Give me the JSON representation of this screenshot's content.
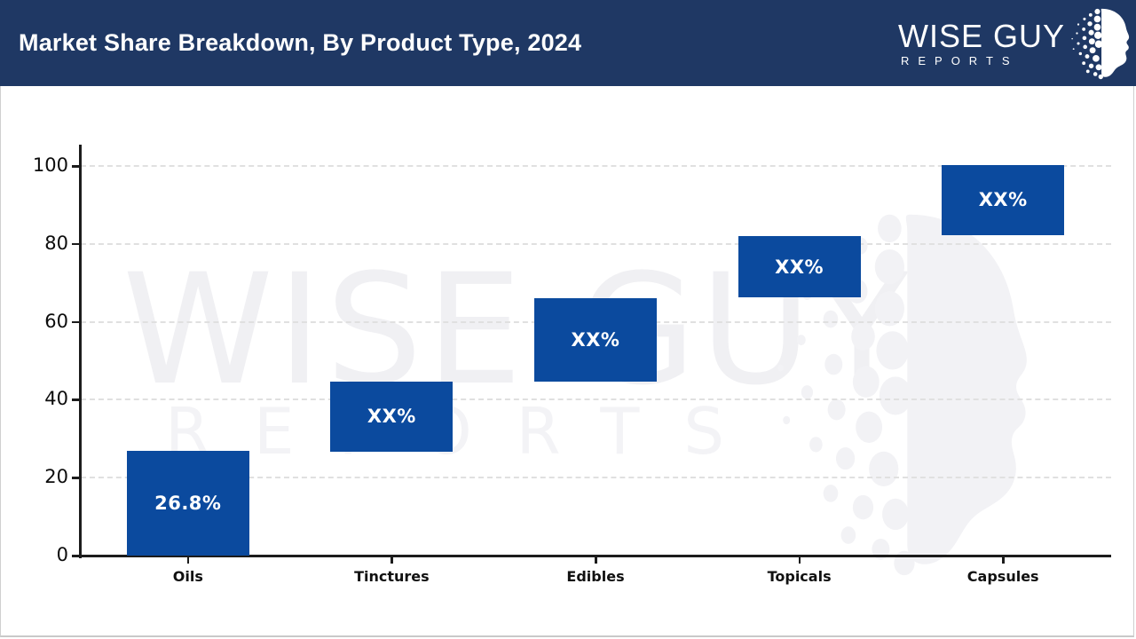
{
  "header": {
    "title": "Market Share Breakdown, By Product Type, 2024",
    "logo": {
      "name": "WISE GUY",
      "subtitle": "REPORTS",
      "icon": "dotted-head-icon"
    }
  },
  "watermark": {
    "name": "WISE GUY",
    "subtitle": "REPORTS",
    "icon": "dotted-head-icon"
  },
  "colors": {
    "header_bg": "#1f3864",
    "bar": "#0b4a9e",
    "bar_label_text": "#ffffff",
    "grid": "#e0e0e0",
    "axis": "#1c1c1c",
    "tick_text": "#0c0c0c",
    "title_text": "#ffffff",
    "watermark": "#f0f0f3"
  },
  "chart_data": {
    "type": "bar",
    "subtype": "floating-waterfall",
    "title": "Market Share Breakdown, By Product Type, 2024",
    "xlabel": "",
    "ylabel": "",
    "categories": [
      "Oils",
      "Tinctures",
      "Edibles",
      "Topicals",
      "Capsules"
    ],
    "segments": [
      {
        "category": "Oils",
        "start": 0,
        "end": 26.8,
        "label": "26.8%"
      },
      {
        "category": "Tinctures",
        "start": 26.7,
        "end": 44.6,
        "label": "XX%"
      },
      {
        "category": "Edibles",
        "start": 44.6,
        "end": 66.0,
        "label": "XX%"
      },
      {
        "category": "Topicals",
        "start": 66.2,
        "end": 82.0,
        "label": "XX%"
      },
      {
        "category": "Capsules",
        "start": 82.3,
        "end": 100.2,
        "label": "XX%"
      }
    ],
    "yticks": [
      0,
      20,
      40,
      60,
      80,
      100
    ],
    "ylim": [
      0,
      105.5
    ],
    "grid": "horizontal-dashed",
    "legend": "none"
  }
}
